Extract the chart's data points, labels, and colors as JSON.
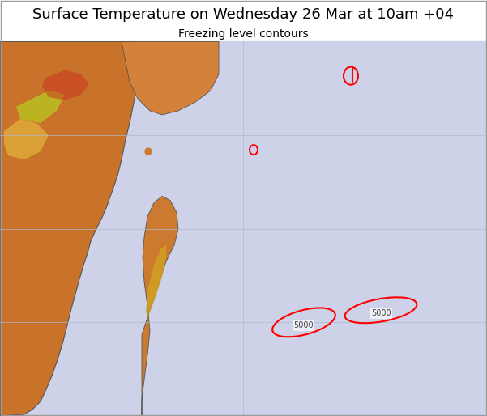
{
  "title": "Surface Temperature on Wednesday 26 Mar at 10am +04",
  "subtitle": "Freezing level contours",
  "title_fontsize": 13,
  "subtitle_fontsize": 10,
  "bg_color": "#dde0f0",
  "border_color": "#cccccc",
  "fig_width": 6.01,
  "fig_height": 5.14,
  "dpi": 100
}
